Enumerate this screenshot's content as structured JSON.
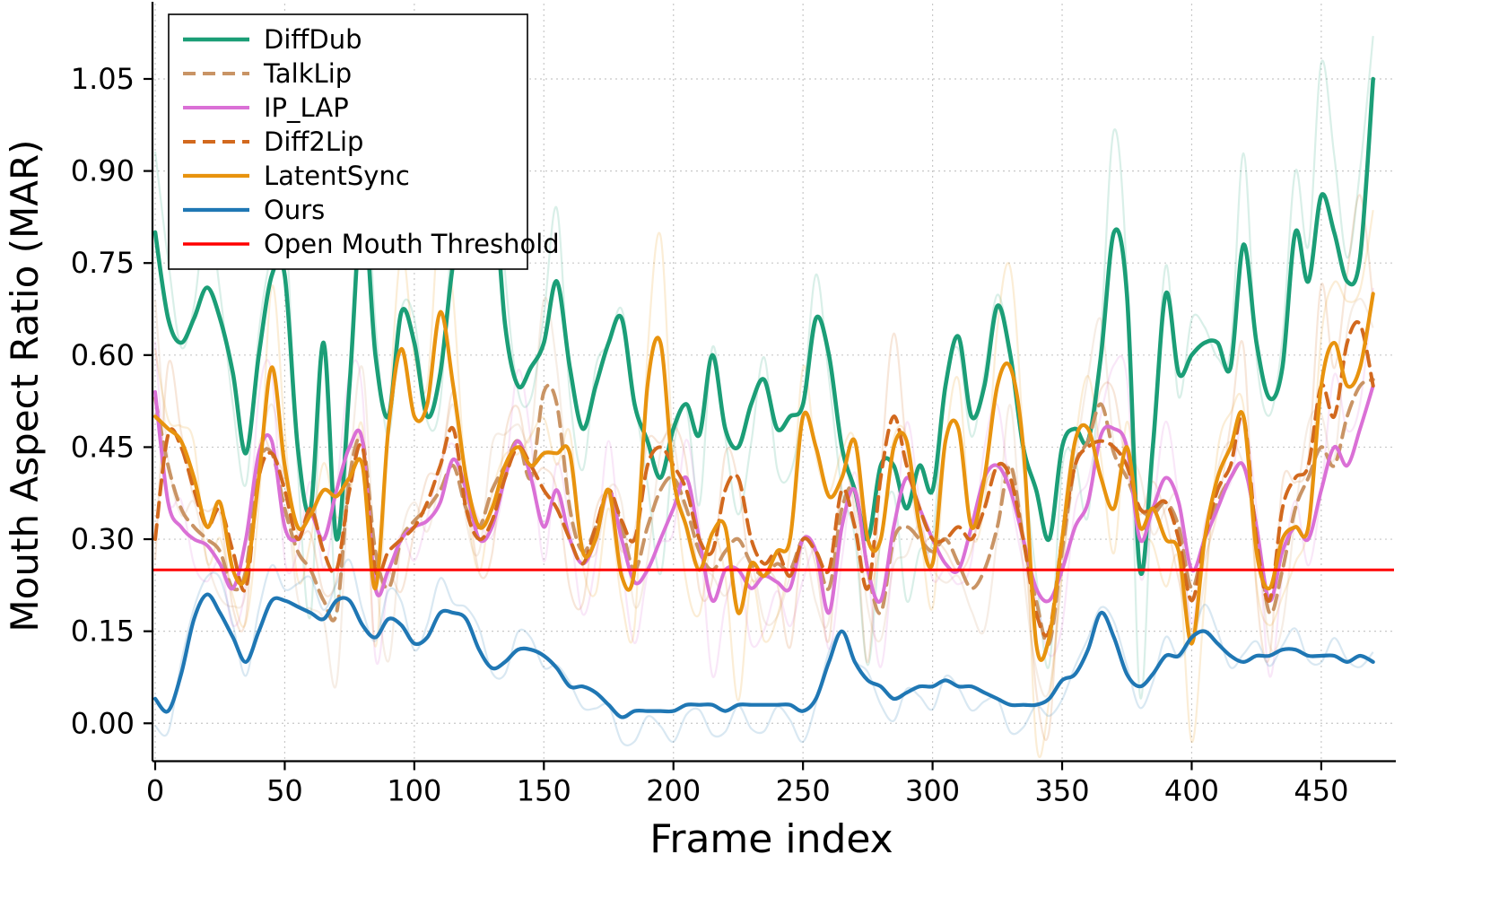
{
  "figure": {
    "xlabel": "Frame index",
    "ylabel": "Mouth Aspect Ratio (MAR)"
  },
  "chart_data": {
    "type": "line",
    "title": "",
    "xlabel": "Frame index",
    "ylabel": "Mouth Aspect Ratio (MAR)",
    "grid": true,
    "legend_position": "upper left",
    "x_ticks": [
      0,
      50,
      100,
      150,
      200,
      250,
      300,
      350,
      400,
      450
    ],
    "y_ticks": [
      0.0,
      0.15,
      0.3,
      0.45,
      0.6,
      0.75,
      0.9,
      1.05
    ],
    "xlim": [
      0,
      476
    ],
    "ylim": [
      -0.061,
      1.164
    ],
    "x_frames": {
      "start": 0,
      "step": 5,
      "count": 95
    },
    "series": [
      {
        "name": "DiffDub",
        "color": "#1b9e77",
        "style": "solid",
        "width": 4.6,
        "values": [
          0.8,
          0.66,
          0.62,
          0.66,
          0.71,
          0.66,
          0.57,
          0.44,
          0.6,
          0.73,
          0.73,
          0.45,
          0.35,
          0.62,
          0.3,
          0.55,
          0.85,
          0.6,
          0.5,
          0.67,
          0.62,
          0.5,
          0.57,
          0.75,
          0.83,
          0.82,
          0.9,
          0.65,
          0.55,
          0.58,
          0.62,
          0.72,
          0.58,
          0.48,
          0.55,
          0.62,
          0.66,
          0.52,
          0.46,
          0.4,
          0.48,
          0.52,
          0.47,
          0.6,
          0.48,
          0.45,
          0.52,
          0.56,
          0.48,
          0.5,
          0.52,
          0.66,
          0.6,
          0.45,
          0.38,
          0.3,
          0.42,
          0.42,
          0.35,
          0.42,
          0.38,
          0.55,
          0.63,
          0.5,
          0.55,
          0.68,
          0.6,
          0.45,
          0.38,
          0.3,
          0.45,
          0.48,
          0.46,
          0.6,
          0.8,
          0.7,
          0.25,
          0.45,
          0.7,
          0.57,
          0.6,
          0.62,
          0.62,
          0.58,
          0.78,
          0.62,
          0.53,
          0.58,
          0.8,
          0.72,
          0.86,
          0.8,
          0.72,
          0.76,
          1.05
        ]
      },
      {
        "name": "TalkLip",
        "color": "#c99465",
        "style": "dashed",
        "width": 4.0,
        "values": [
          0.53,
          0.42,
          0.35,
          0.32,
          0.3,
          0.28,
          0.22,
          0.25,
          0.42,
          0.44,
          0.35,
          0.28,
          0.25,
          0.2,
          0.18,
          0.4,
          0.46,
          0.28,
          0.22,
          0.3,
          0.33,
          0.35,
          0.38,
          0.42,
          0.35,
          0.32,
          0.38,
          0.42,
          0.46,
          0.4,
          0.54,
          0.52,
          0.35,
          0.28,
          0.32,
          0.38,
          0.32,
          0.25,
          0.32,
          0.38,
          0.4,
          0.35,
          0.28,
          0.25,
          0.28,
          0.3,
          0.26,
          0.24,
          0.26,
          0.25,
          0.3,
          0.28,
          0.22,
          0.35,
          0.38,
          0.25,
          0.18,
          0.3,
          0.32,
          0.3,
          0.28,
          0.3,
          0.26,
          0.22,
          0.25,
          0.32,
          0.42,
          0.3,
          0.2,
          0.13,
          0.28,
          0.42,
          0.46,
          0.52,
          0.44,
          0.4,
          0.35,
          0.34,
          0.36,
          0.32,
          0.22,
          0.3,
          0.36,
          0.4,
          0.42,
          0.32,
          0.18,
          0.25,
          0.35,
          0.4,
          0.45,
          0.42,
          0.5,
          0.55,
          0.56
        ]
      },
      {
        "name": "IP_LAP",
        "color": "#da70d6",
        "style": "solid",
        "width": 4.0,
        "values": [
          0.54,
          0.36,
          0.32,
          0.3,
          0.29,
          0.26,
          0.22,
          0.3,
          0.44,
          0.46,
          0.32,
          0.3,
          0.34,
          0.3,
          0.38,
          0.45,
          0.46,
          0.22,
          0.25,
          0.3,
          0.32,
          0.33,
          0.36,
          0.43,
          0.38,
          0.3,
          0.32,
          0.4,
          0.46,
          0.4,
          0.32,
          0.38,
          0.3,
          0.26,
          0.3,
          0.38,
          0.3,
          0.23,
          0.25,
          0.3,
          0.35,
          0.4,
          0.3,
          0.2,
          0.25,
          0.25,
          0.22,
          0.24,
          0.23,
          0.22,
          0.3,
          0.28,
          0.18,
          0.32,
          0.38,
          0.25,
          0.2,
          0.32,
          0.4,
          0.35,
          0.3,
          0.26,
          0.25,
          0.32,
          0.4,
          0.42,
          0.38,
          0.3,
          0.22,
          0.2,
          0.25,
          0.32,
          0.36,
          0.47,
          0.48,
          0.45,
          0.3,
          0.35,
          0.4,
          0.36,
          0.25,
          0.3,
          0.35,
          0.4,
          0.42,
          0.32,
          0.2,
          0.28,
          0.32,
          0.3,
          0.38,
          0.45,
          0.42,
          0.48,
          0.55
        ]
      },
      {
        "name": "Diff2Lip",
        "color": "#d2691e",
        "style": "dashed",
        "width": 4.0,
        "values": [
          0.3,
          0.47,
          0.45,
          0.38,
          0.32,
          0.35,
          0.28,
          0.22,
          0.4,
          0.44,
          0.38,
          0.3,
          0.35,
          0.28,
          0.25,
          0.38,
          0.45,
          0.25,
          0.28,
          0.3,
          0.32,
          0.36,
          0.42,
          0.48,
          0.35,
          0.3,
          0.33,
          0.4,
          0.45,
          0.42,
          0.38,
          0.35,
          0.3,
          0.26,
          0.32,
          0.38,
          0.33,
          0.3,
          0.42,
          0.45,
          0.42,
          0.38,
          0.3,
          0.28,
          0.38,
          0.4,
          0.3,
          0.26,
          0.28,
          0.24,
          0.3,
          0.28,
          0.25,
          0.38,
          0.32,
          0.22,
          0.4,
          0.5,
          0.42,
          0.35,
          0.3,
          0.3,
          0.32,
          0.3,
          0.35,
          0.42,
          0.4,
          0.3,
          0.18,
          0.15,
          0.3,
          0.42,
          0.45,
          0.46,
          0.45,
          0.42,
          0.35,
          0.35,
          0.36,
          0.3,
          0.2,
          0.3,
          0.38,
          0.42,
          0.5,
          0.3,
          0.2,
          0.35,
          0.4,
          0.42,
          0.55,
          0.5,
          0.62,
          0.65,
          0.55
        ]
      },
      {
        "name": "LatentSync",
        "color": "#e8930e",
        "style": "solid",
        "width": 4.2,
        "values": [
          0.5,
          0.48,
          0.46,
          0.4,
          0.32,
          0.36,
          0.25,
          0.24,
          0.4,
          0.58,
          0.42,
          0.32,
          0.34,
          0.38,
          0.37,
          0.4,
          0.42,
          0.22,
          0.48,
          0.61,
          0.5,
          0.52,
          0.67,
          0.55,
          0.4,
          0.32,
          0.35,
          0.42,
          0.45,
          0.42,
          0.44,
          0.44,
          0.44,
          0.28,
          0.3,
          0.38,
          0.24,
          0.25,
          0.55,
          0.62,
          0.4,
          0.32,
          0.25,
          0.31,
          0.32,
          0.18,
          0.26,
          0.24,
          0.28,
          0.3,
          0.5,
          0.45,
          0.37,
          0.4,
          0.46,
          0.3,
          0.3,
          0.45,
          0.46,
          0.32,
          0.26,
          0.46,
          0.48,
          0.32,
          0.4,
          0.55,
          0.58,
          0.45,
          0.13,
          0.14,
          0.3,
          0.46,
          0.48,
          0.4,
          0.35,
          0.45,
          0.32,
          0.35,
          0.3,
          0.28,
          0.13,
          0.3,
          0.4,
          0.45,
          0.5,
          0.28,
          0.22,
          0.3,
          0.32,
          0.32,
          0.55,
          0.62,
          0.55,
          0.58,
          0.7
        ]
      },
      {
        "name": "Ours",
        "color": "#1f77b4",
        "style": "solid",
        "width": 4.2,
        "values": [
          0.04,
          0.02,
          0.08,
          0.17,
          0.21,
          0.18,
          0.14,
          0.1,
          0.15,
          0.2,
          0.2,
          0.19,
          0.18,
          0.17,
          0.2,
          0.2,
          0.16,
          0.14,
          0.17,
          0.16,
          0.13,
          0.14,
          0.18,
          0.18,
          0.17,
          0.12,
          0.09,
          0.1,
          0.12,
          0.12,
          0.11,
          0.09,
          0.06,
          0.06,
          0.05,
          0.03,
          0.01,
          0.02,
          0.02,
          0.02,
          0.02,
          0.03,
          0.03,
          0.03,
          0.02,
          0.03,
          0.03,
          0.03,
          0.03,
          0.03,
          0.02,
          0.04,
          0.1,
          0.15,
          0.1,
          0.07,
          0.06,
          0.04,
          0.05,
          0.06,
          0.06,
          0.07,
          0.06,
          0.06,
          0.05,
          0.04,
          0.03,
          0.03,
          0.03,
          0.04,
          0.07,
          0.08,
          0.12,
          0.18,
          0.14,
          0.08,
          0.06,
          0.08,
          0.11,
          0.11,
          0.14,
          0.15,
          0.13,
          0.11,
          0.1,
          0.11,
          0.11,
          0.12,
          0.12,
          0.11,
          0.11,
          0.11,
          0.1,
          0.11,
          0.1
        ]
      }
    ],
    "threshold": {
      "name": "Open Mouth Threshold",
      "color": "#ff0000",
      "value": 0.25,
      "width": 3.0
    },
    "legend_entries": [
      "DiffDub",
      "TalkLip",
      "IP_LAP",
      "Diff2Lip",
      "LatentSync",
      "Ours",
      "Open Mouth Threshold"
    ]
  },
  "style": {
    "grid_color": "#c8c8c8",
    "axis_color": "#000000",
    "tick_label_color": "#000000",
    "background": "#ffffff"
  }
}
